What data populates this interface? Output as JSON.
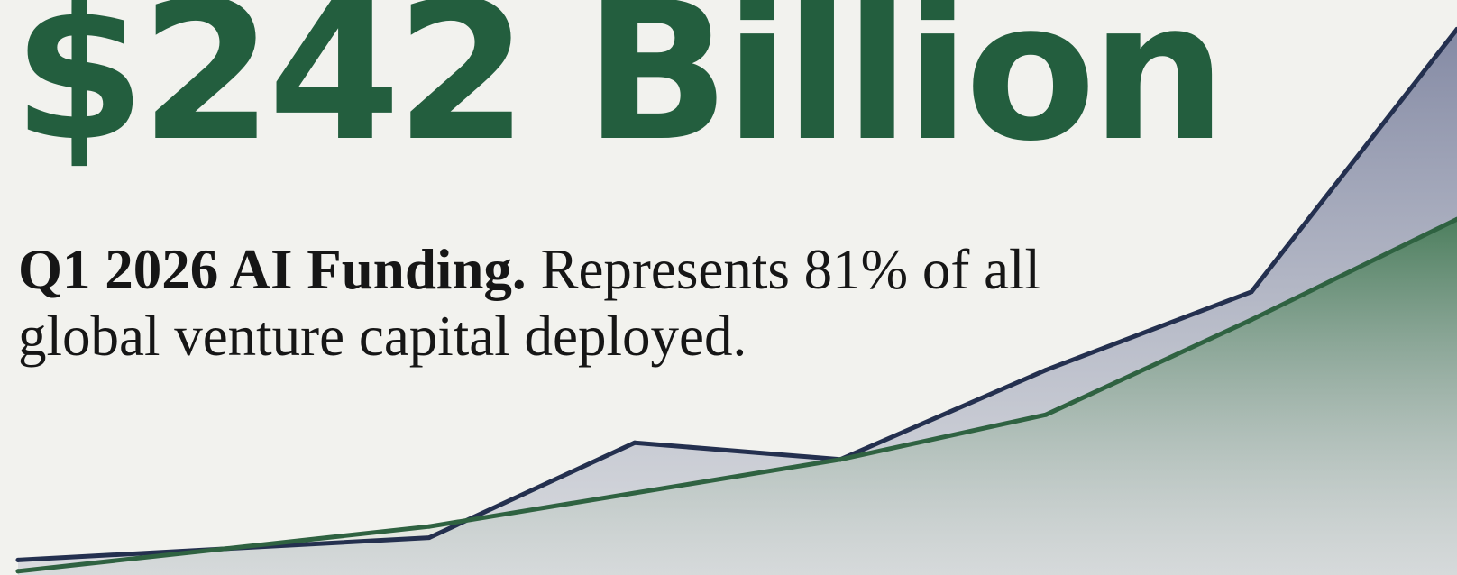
{
  "headline": "$242 Billion",
  "subhead": {
    "lead": "Q1 2026 AI Funding.",
    "text": "Represents 81% of all global venture capital deployed."
  },
  "colors": {
    "background": "#f2f2ee",
    "headline": "#235e3e",
    "series_navy_line": "#24304f",
    "series_green_line": "#2f6241",
    "navy_fill": "#8e94ad",
    "green_fill": "#4d7f5e"
  },
  "chart_data": {
    "type": "line",
    "xlim": [
      0,
      7
    ],
    "ylim": [
      0,
      10
    ],
    "grid": false,
    "axes_visible": false,
    "series": [
      {
        "color": "#24304f",
        "points": [
          [
            0,
            0.3
          ],
          [
            2,
            0.7
          ],
          [
            3,
            2.4
          ],
          [
            4,
            2.1
          ],
          [
            5,
            3.7
          ],
          [
            6,
            5.1
          ],
          [
            7,
            9.8
          ]
        ],
        "fill": "#8e94ad"
      },
      {
        "color": "#2f6241",
        "points": [
          [
            0,
            0.1
          ],
          [
            1,
            0.5
          ],
          [
            2,
            0.9
          ],
          [
            3,
            1.5
          ],
          [
            4,
            2.1
          ],
          [
            5,
            2.9
          ],
          [
            6,
            4.6
          ],
          [
            7,
            6.4
          ]
        ],
        "fill": "#4d7f5e"
      }
    ]
  }
}
